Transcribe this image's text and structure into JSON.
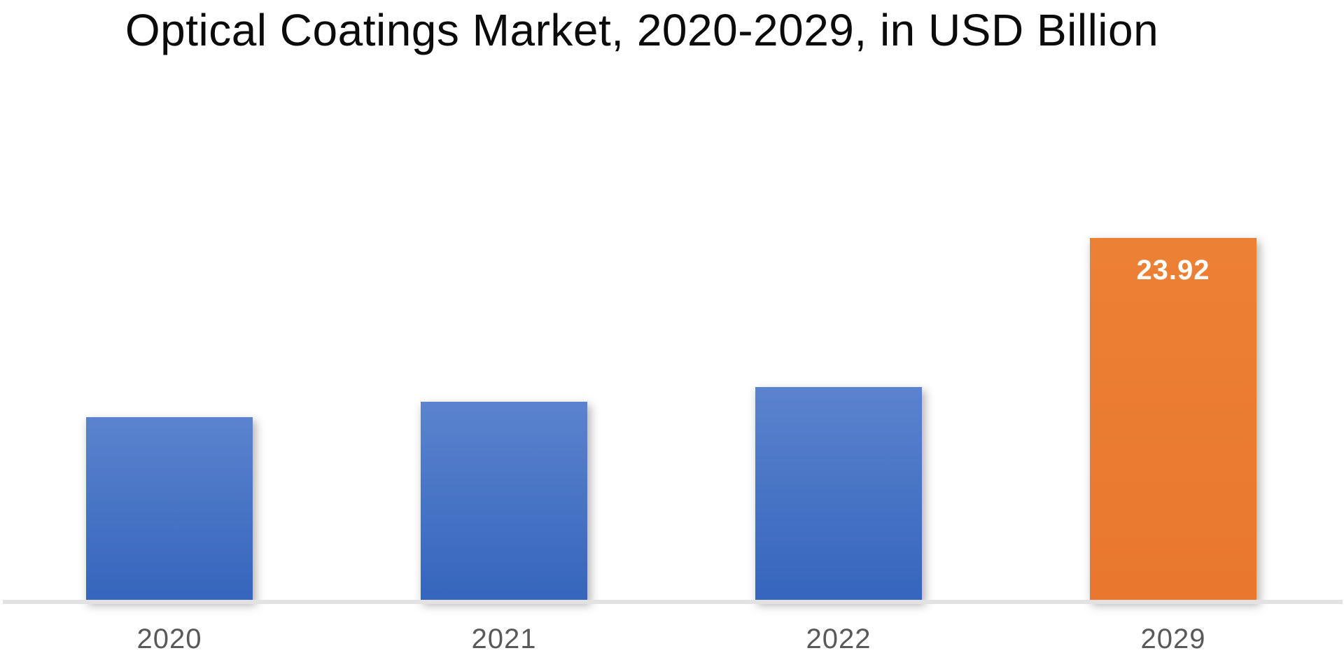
{
  "chart_data": {
    "type": "bar",
    "title": "Optical Coatings Market, 2020-2029, in USD Billion",
    "categories": [
      "2020",
      "2021",
      "2022",
      "2029"
    ],
    "values": [
      12.1,
      13.1,
      14.1,
      23.92
    ],
    "data_labels": [
      "",
      "",
      "",
      "23.92"
    ],
    "xlabel": "",
    "ylabel": "",
    "ylim": [
      0,
      24
    ],
    "grid": false,
    "legend": false,
    "bar_fill_top": [
      "#5B83CE",
      "#5B83CE",
      "#5B83CE",
      "#EC8034"
    ],
    "bar_fill_bottom": [
      "#3565BD",
      "#3565BD",
      "#3565BD",
      "#E9782E"
    ],
    "data_label_color": "#FFFFFF",
    "axis_line_color": "#E2E2E2",
    "tick_label_color": "#595959",
    "title_color": "#0B0B0B"
  }
}
